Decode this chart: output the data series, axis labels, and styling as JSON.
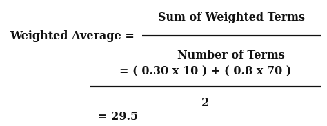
{
  "bg_color": "#ffffff",
  "text_color": "#111111",
  "line1_left": "Weighted Average = ",
  "line1_numerator": "Sum of Weighted Terms",
  "line1_denominator": "Number of Terms",
  "line2_numerator": "= ( 0.30 x 10 ) + ( 0.8 x 70 )",
  "line2_denominator": "2",
  "line3": "= 29.5",
  "fontsize": 11.5,
  "figwidth": 4.74,
  "figheight": 1.83,
  "dpi": 100
}
